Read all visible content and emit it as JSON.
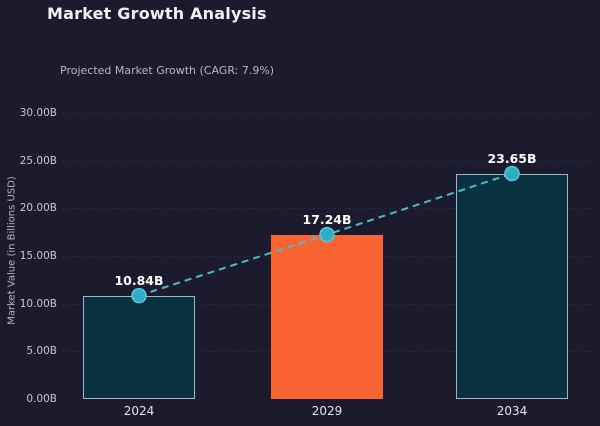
{
  "title": "Market Growth Analysis",
  "subtitle": "Projected Market Growth (CAGR: 7.9%)",
  "colors": {
    "background": "#1b1b2d",
    "title_text": "#f2f2f6",
    "subtitle_text": "#b6b6c1",
    "axis_title_text": "#b6b6c1",
    "tick_text": "#c6c6d2",
    "xtick_text": "#e4e4ea",
    "value_label_text": "#ffffff",
    "teal_bar": "#0a3140",
    "teal_bar_border": "#9db9c6",
    "orange_bar": "#fa6433",
    "trend_line": "#46bfca",
    "trend_marker_fill": "#2eadc6",
    "trend_marker_stroke": "#54cbdb"
  },
  "chart_data": {
    "type": "bar",
    "title": "Market Growth Analysis",
    "subtitle": "Projected Market Growth (CAGR: 7.9%)",
    "categories": [
      "2024",
      "2029",
      "2034"
    ],
    "values": [
      10.84,
      17.24,
      23.65
    ],
    "value_labels": [
      "10.84B",
      "17.24B",
      "23.65B"
    ],
    "bar_colors": [
      "#0a3140",
      "#fa6433",
      "#0a3140"
    ],
    "bar_border_colors": [
      "#9db9c6",
      "rgba(0,0,0,0)",
      "#9db9c6"
    ],
    "xlabel": "",
    "ylabel": "Market Value (in Billions USD)",
    "ylim": [
      0,
      30
    ],
    "ytick_values": [
      0,
      5,
      10,
      15,
      20,
      25,
      30
    ],
    "ytick_labels": [
      "0.00B",
      "5.00B",
      "10.00B",
      "15.00B",
      "20.00B",
      "25.00B",
      "30.00B"
    ],
    "grid": "faint horizontal dashed",
    "legend": "none",
    "overlay_line": {
      "type": "line",
      "style": "dashed",
      "x": [
        "2024",
        "2029",
        "2034"
      ],
      "values": [
        10.84,
        17.24,
        23.65
      ],
      "markers": true
    }
  }
}
